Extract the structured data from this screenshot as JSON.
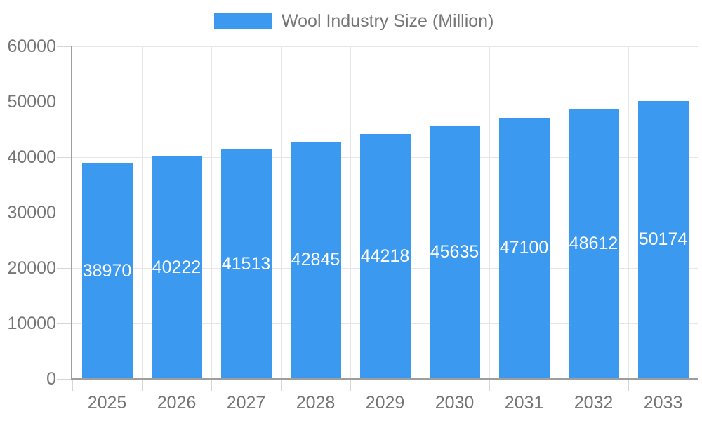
{
  "legend": {
    "label": "Wool Industry Size (Million)",
    "swatch_color": "#3b99f0"
  },
  "chart_data": {
    "type": "bar",
    "title": "Wool Industry Size (Million)",
    "categories": [
      "2025",
      "2026",
      "2027",
      "2028",
      "2029",
      "2030",
      "2031",
      "2032",
      "2033"
    ],
    "values": [
      38970,
      40222,
      41513,
      42845,
      44218,
      45635,
      47100,
      48612,
      50174
    ],
    "series": [
      {
        "name": "Wool Industry Size (Million)",
        "values": [
          38970,
          40222,
          41513,
          42845,
          44218,
          45635,
          47100,
          48612,
          50174
        ]
      }
    ],
    "xlabel": "",
    "ylabel": "",
    "ylim": [
      0,
      60000
    ],
    "yticks": [
      0,
      10000,
      20000,
      30000,
      40000,
      50000,
      60000
    ],
    "grid": true,
    "legend_position": "top",
    "value_labels": "inside-center-white",
    "colors": {
      "bar": "#3b99f0",
      "axis_text": "#757575",
      "axis_line": "#9e9e9e",
      "gridline": "#e6e6e6",
      "tick": "#d6d6d6",
      "bar_label": "#ffffff",
      "background": "#ffffff"
    }
  }
}
